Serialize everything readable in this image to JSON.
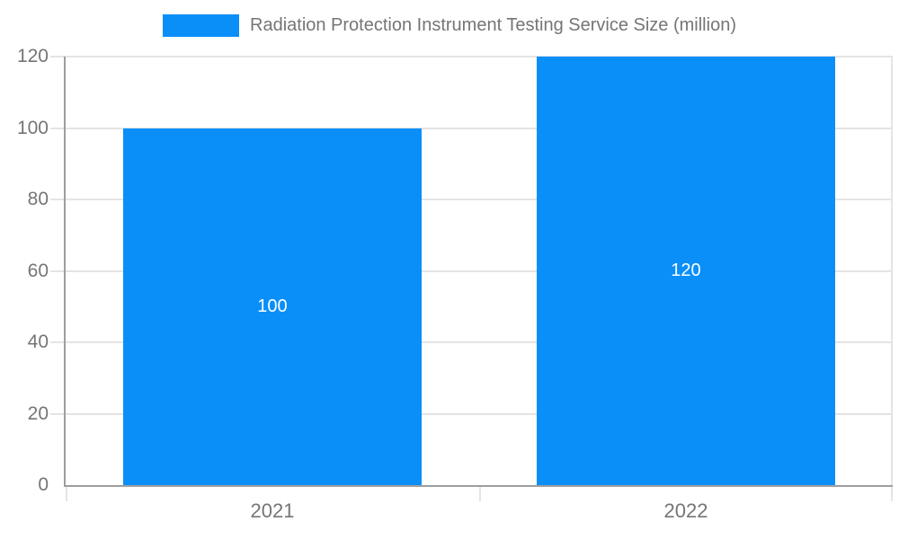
{
  "chart_data": {
    "type": "bar",
    "title": "",
    "legend": "Radiation Protection Instrument Testing Service Size (million)",
    "categories": [
      "2021",
      "2022"
    ],
    "values": [
      100,
      120
    ],
    "data_labels": [
      "100",
      "120"
    ],
    "xlabel": "",
    "ylabel": "",
    "ylim": [
      0,
      120
    ],
    "yticks": [
      0,
      20,
      40,
      60,
      80,
      100,
      120
    ],
    "grid": true,
    "legend_position": "top",
    "colors": {
      "bar": "#0a8ff9",
      "axis": "#9e9e9e",
      "grid": "#e4e4e4",
      "tick_label": "#757575",
      "data_label": "#ffffff",
      "background": "#ffffff"
    }
  }
}
